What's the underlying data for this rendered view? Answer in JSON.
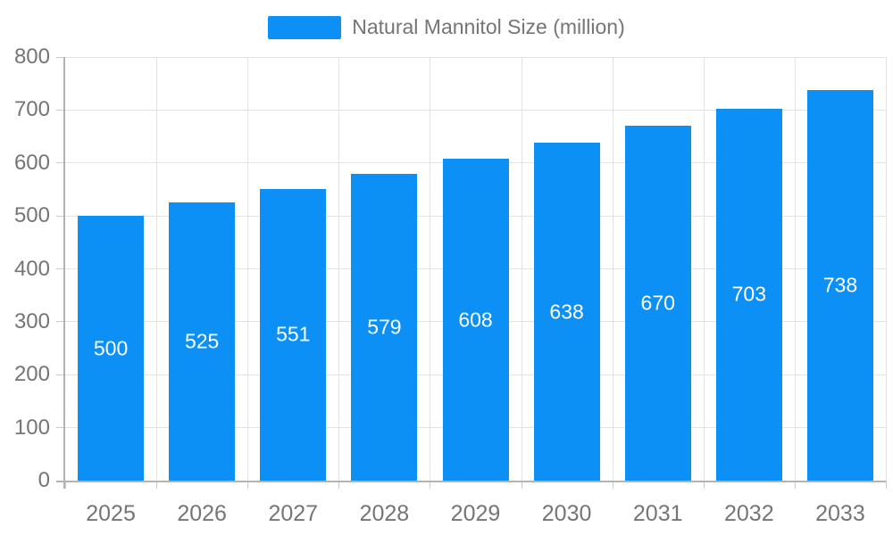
{
  "chart_data": {
    "type": "bar",
    "title": "",
    "legend_label": "Natural Mannitol Size (million)",
    "legend_position": "top-center",
    "categories": [
      "2025",
      "2026",
      "2027",
      "2028",
      "2029",
      "2030",
      "2031",
      "2032",
      "2033"
    ],
    "series": [
      {
        "name": "Natural Mannitol Size (million)",
        "values": [
          500,
          525,
          551,
          579,
          608,
          638,
          670,
          703,
          738
        ]
      }
    ],
    "xlabel": "",
    "ylabel": "",
    "ylim": [
      0,
      800
    ],
    "ytick_step": 100,
    "yticks": [
      0,
      100,
      200,
      300,
      400,
      500,
      600,
      700,
      800
    ],
    "grid": true,
    "bar_label_position": "inside-center",
    "colors": {
      "bar": "#0d90f5",
      "bar_label": "#ffffff",
      "axis_label": "#757575",
      "legend_label": "#757575",
      "grid_line": "#e3e3e3",
      "tick": "#c9c9c9",
      "axis_line": "#b3b3b3"
    }
  }
}
